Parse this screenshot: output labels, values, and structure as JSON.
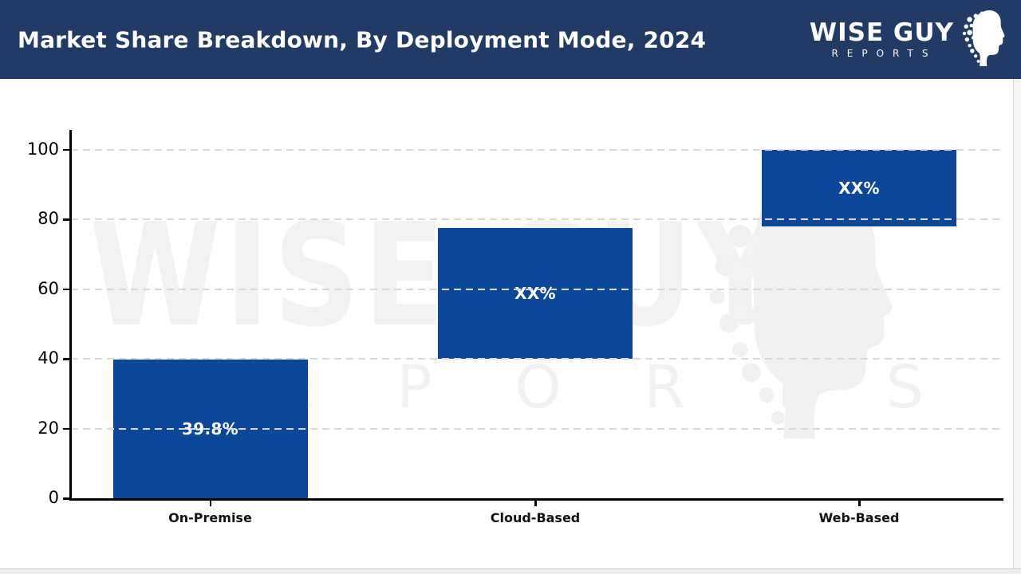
{
  "header": {
    "title": "Market Share Breakdown, By Deployment Mode, 2024",
    "logo": {
      "primary": "WISE GUY",
      "secondary": "REPORTS"
    }
  },
  "watermark": {
    "primary": "WISE GUY",
    "secondary": "R E P O R T S"
  },
  "chart_data": {
    "type": "bar",
    "variant": "floating-waterfall",
    "title": "Market Share Breakdown, By Deployment Mode, 2024",
    "categories": [
      "On-Premise",
      "Cloud-Based",
      "Web-Based"
    ],
    "bars": [
      {
        "category": "On-Premise",
        "start": 0,
        "end": 39.8,
        "label": "39.8%"
      },
      {
        "category": "Cloud-Based",
        "start": 40,
        "end": 77.5,
        "label": "XX%"
      },
      {
        "category": "Web-Based",
        "start": 78,
        "end": 100,
        "label": "XX%"
      }
    ],
    "yticks": [
      0,
      20,
      40,
      60,
      80,
      100
    ],
    "ylim": [
      0,
      105
    ],
    "grid": "horizontal-dashed",
    "legend": "none",
    "bar_color": "#0d4799",
    "bar_label_color": "#ffffff"
  },
  "colors": {
    "header_bg": "#213a66",
    "bar": "#0d4799",
    "grid": "#d9d9d9",
    "watermark": "#f2f2f2",
    "axis": "#000000"
  }
}
